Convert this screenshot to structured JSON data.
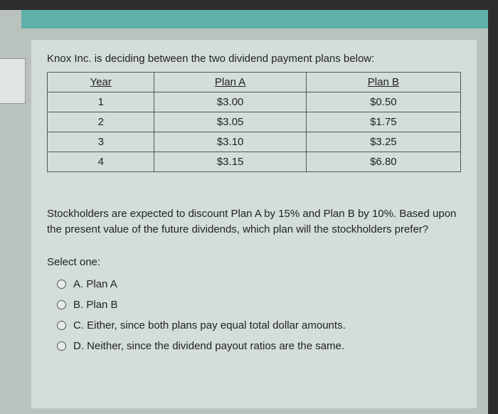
{
  "intro": "Knox Inc. is deciding between the two dividend payment plans below:",
  "table": {
    "columns": [
      "Year",
      "Plan A",
      "Plan B"
    ],
    "rows": [
      [
        "1",
        "$3.00",
        "$0.50"
      ],
      [
        "2",
        "$3.05",
        "$1.75"
      ],
      [
        "3",
        "$3.10",
        "$3.25"
      ],
      [
        "4",
        "$3.15",
        "$6.80"
      ]
    ]
  },
  "question": "Stockholders are expected to discount Plan A by 15% and Plan B by 10%. Based upon the present value of the future dividends, which plan will the stockholders prefer?",
  "select_label": "Select one:",
  "options": [
    {
      "letter": "A.",
      "text": "Plan A"
    },
    {
      "letter": "B.",
      "text": "Plan B"
    },
    {
      "letter": "C.",
      "text": "Either, since both plans pay equal total dollar amounts."
    },
    {
      "letter": "D.",
      "text": "Neither, since the dividend payout ratios are the same."
    }
  ],
  "colors": {
    "page_bg": "#b9c2bd",
    "panel_bg": "#d3ded8",
    "teal_bar": "#5fb0a8",
    "border": "#555",
    "text": "#222"
  }
}
